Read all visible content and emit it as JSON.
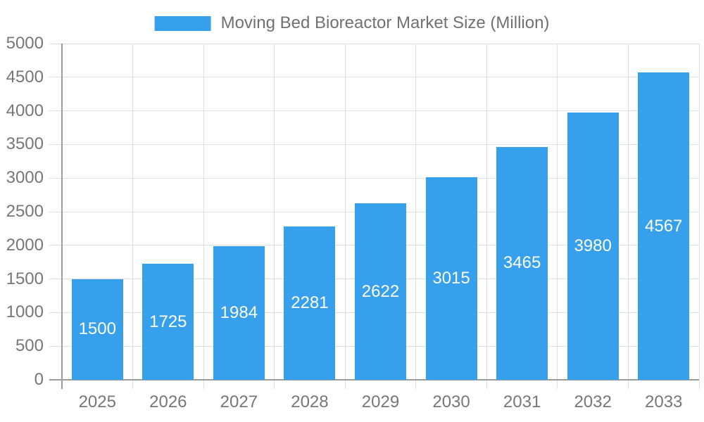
{
  "legend": {
    "label": "Moving Bed Bioreactor Market Size (Million)"
  },
  "chart_data": {
    "type": "bar",
    "title": "Moving Bed Bioreactor Market Size (Million)",
    "categories": [
      "2025",
      "2026",
      "2027",
      "2028",
      "2029",
      "2030",
      "2031",
      "2032",
      "2033"
    ],
    "values": [
      1500,
      1725,
      1984,
      2281,
      2622,
      3015,
      3465,
      3980,
      4567
    ],
    "xlabel": "",
    "ylabel": "",
    "ylim": [
      0,
      5000
    ],
    "ytick_step": 500,
    "ytick_labels": [
      "0",
      "500",
      "1000",
      "1500",
      "2000",
      "2500",
      "3000",
      "3500",
      "4000",
      "4500",
      "5000"
    ],
    "grid": "horizontal and vertical light-gray gridlines",
    "legend_position": "top-center",
    "value_labels": "white, centered inside bars"
  },
  "colors": {
    "bar": "#36a0ec",
    "axis": "#9b9b9b",
    "gridline": "#dfdfdf",
    "tick_label": "#777777",
    "legend_text": "#717171",
    "value_label": "#ffffff",
    "background": "#ffffff"
  }
}
